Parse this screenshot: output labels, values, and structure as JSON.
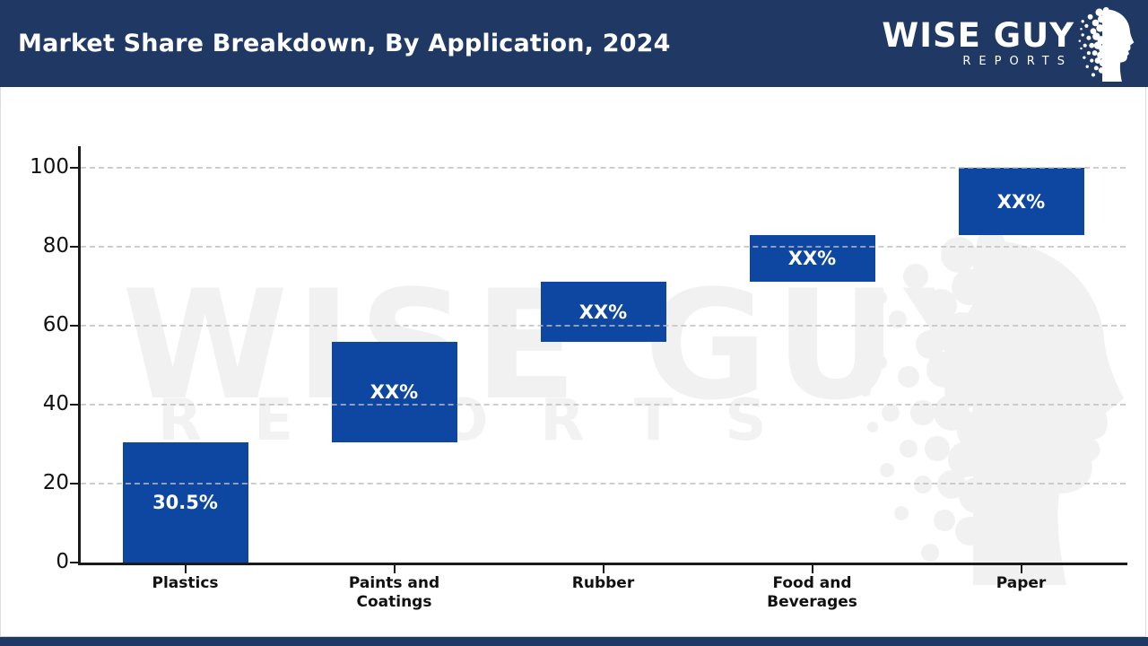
{
  "header": {
    "title": "Market Share Breakdown, By Application, 2024",
    "logo": {
      "line1": "WISE GUY",
      "line2": "REPORTS",
      "head_icon": "dotted-face-profile"
    }
  },
  "watermark": {
    "line1": "WISE GUY",
    "line2": "REPORTS",
    "head_icon": "dotted-face-profile"
  },
  "colors": {
    "header_bg": "#1f3864",
    "footer_bg": "#1f3864",
    "bar_fill": "#0d47a1",
    "bar_label": "#ffffff",
    "axis": "#1a1a1a",
    "gridline": "#bebebe",
    "watermark": "#f1f1f1"
  },
  "chart_data": {
    "type": "bar",
    "subtype": "waterfall",
    "title": "Market Share Breakdown, By Application, 2024",
    "xlabel": "",
    "ylabel": "",
    "ylim": [
      0,
      100
    ],
    "yticks": [
      0,
      20,
      40,
      60,
      80,
      100
    ],
    "grid": "horizontal-dashed",
    "legend": "none",
    "categories": [
      "Plastics",
      "Paints and Coatings",
      "Rubber",
      "Food and Beverages",
      "Paper"
    ],
    "segments": [
      {
        "category": "Plastics",
        "start": 0,
        "end": 30.5,
        "label": "30.5%"
      },
      {
        "category": "Paints and Coatings",
        "start": 30.5,
        "end": 55.8,
        "label": "XX%"
      },
      {
        "category": "Rubber",
        "start": 55.8,
        "end": 71.2,
        "label": "XX%"
      },
      {
        "category": "Food and Beverages",
        "start": 71.2,
        "end": 82.9,
        "label": "XX%"
      },
      {
        "category": "Paper",
        "start": 82.9,
        "end": 100,
        "label": "XX%"
      }
    ]
  }
}
